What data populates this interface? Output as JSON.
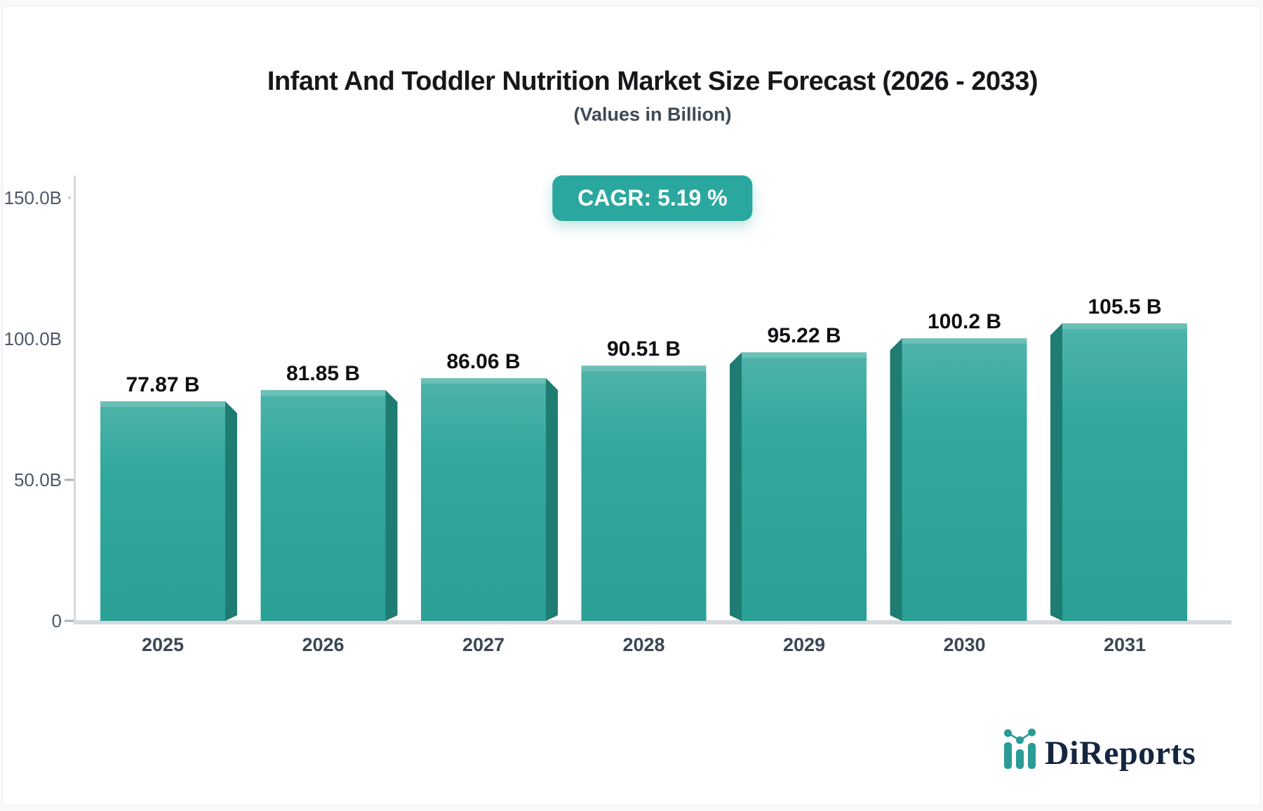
{
  "page": {
    "background": "#f8f9fb",
    "card_background": "#ffffff"
  },
  "header": {
    "title": "Infant And Toddler Nutrition Market Size Forecast (2026 - 2033)",
    "subtitle": "(Values in Billion)",
    "cagr_badge": "CAGR: 5.19 %"
  },
  "branding": {
    "wordmark": "DiReports",
    "icon": "mini-bar-chart-logo-icon",
    "wordmark_color": "#152640",
    "icon_color": "#2a9c95"
  },
  "chart_data": {
    "type": "bar",
    "title": "Infant And Toddler Nutrition Market Size Forecast (2026 - 2033)",
    "subtitle": "(Values in Billion)",
    "unit": "Billion",
    "cagr_percent": 5.19,
    "categories": [
      "2025",
      "2026",
      "2027",
      "2028",
      "2029",
      "2030",
      "2031"
    ],
    "values": [
      77.87,
      81.85,
      86.06,
      90.51,
      95.22,
      100.2,
      105.5
    ],
    "value_labels": [
      "77.87 B",
      "81.85 B",
      "86.06 B",
      "90.51 B",
      "95.22 B",
      "100.2 B",
      "105.5 B"
    ],
    "ylim": [
      0,
      150
    ],
    "yticks": [
      {
        "label": "150.0B",
        "value": 150,
        "marker": "dot"
      },
      {
        "label": "100.0B",
        "value": 100,
        "marker": "none"
      },
      {
        "label": "50.0B",
        "value": 50,
        "marker": "dash"
      },
      {
        "label": "0",
        "value": 0,
        "marker": "dash"
      }
    ],
    "grid": false,
    "legend": false,
    "style": "3d-perspective-bars",
    "bar_colors": {
      "face_top": "#50b4aa",
      "face_bottom": "#2aa096",
      "side": "#1e7c72",
      "accent": "#2aa89f"
    },
    "axis_color": "#d6d9dd",
    "tick_label_color": "#4c5869",
    "category_label_color": "#3b4754",
    "value_label_color": "#0d0f12"
  }
}
